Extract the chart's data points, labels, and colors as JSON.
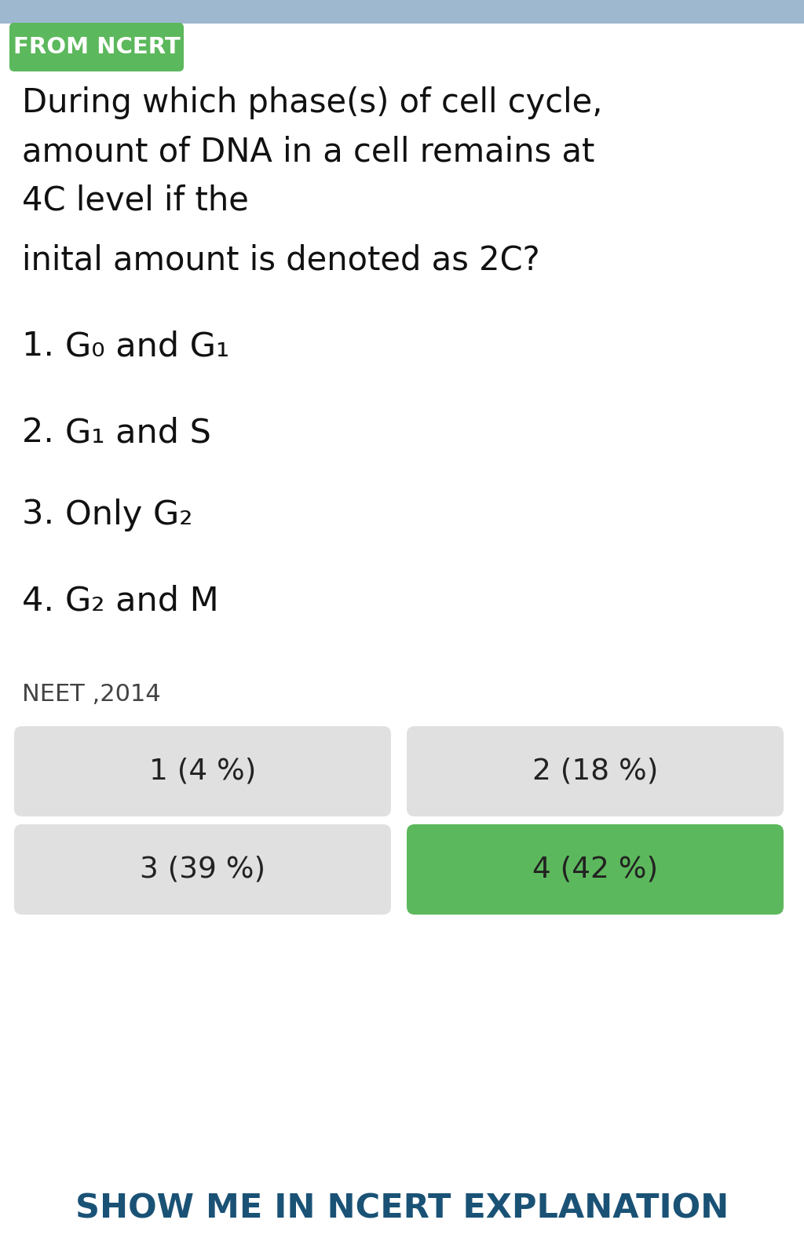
{
  "bg_color": "#ffffff",
  "from_ncert_bg": "#5cb85c",
  "from_ncert_text": "FROM NCERT",
  "from_ncert_text_color": "#ffffff",
  "question_lines": [
    "During which phase(s) of cell cycle,",
    "amount of DNA in a cell remains at",
    "4C level if the",
    "",
    "inital amount is denoted as 2C?"
  ],
  "year_text": "NEET ,2014",
  "buttons": [
    {
      "label": "1 (4 %)",
      "color": "#e0e0e0",
      "text_color": "#222222"
    },
    {
      "label": "2 (18 %)",
      "color": "#e0e0e0",
      "text_color": "#222222"
    },
    {
      "label": "3 (39 %)",
      "color": "#e0e0e0",
      "text_color": "#222222"
    },
    {
      "label": "4 (42 %)",
      "color": "#5cb85c",
      "text_color": "#222222"
    }
  ],
  "show_text": "SHOW ME IN NCERT EXPLANATION",
  "show_text_color": "#1a5276",
  "top_bar_color": "#b0b0b0",
  "fig_width": 10.24,
  "fig_height": 16.05,
  "dpi": 100
}
